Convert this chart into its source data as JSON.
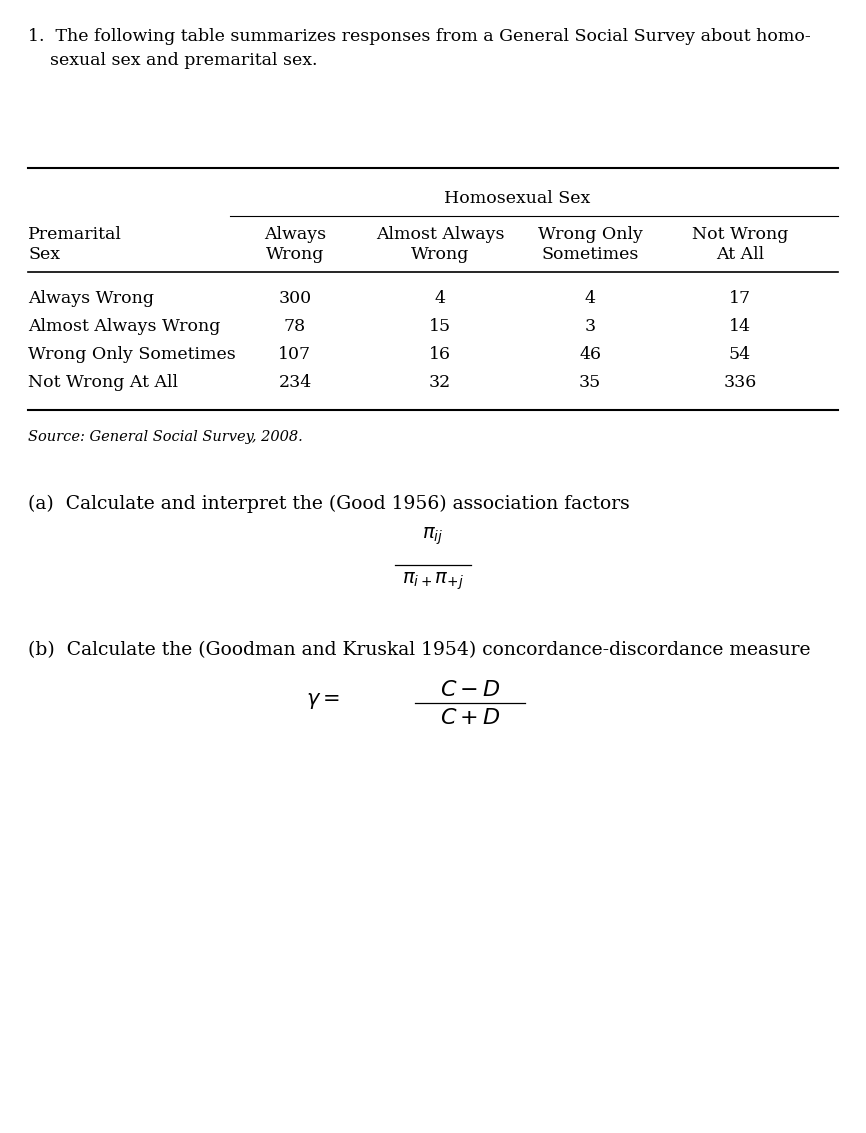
{
  "homo_sex_header": "Homosexual Sex",
  "col_headers": [
    [
      "Always",
      "Wrong"
    ],
    [
      "Almost Always",
      "Wrong"
    ],
    [
      "Wrong Only",
      "Sometimes"
    ],
    [
      "Not Wrong",
      "At All"
    ]
  ],
  "row_labels": [
    "Always Wrong",
    "Almost Always Wrong",
    "Wrong Only Sometimes",
    "Not Wrong At All"
  ],
  "table_data": [
    [
      300,
      4,
      4,
      17
    ],
    [
      78,
      15,
      3,
      14
    ],
    [
      107,
      16,
      46,
      54
    ],
    [
      234,
      32,
      35,
      336
    ]
  ],
  "source_text": "Source: General Social Survey, 2008.",
  "part_a_text": "(a)  Calculate and interpret the (Good 1956) association factors",
  "part_b_text": "(b)  Calculate the (Goodman and Kruskal 1954) concordance-discordance measure",
  "bg_color": "#ffffff",
  "text_color": "#000000"
}
